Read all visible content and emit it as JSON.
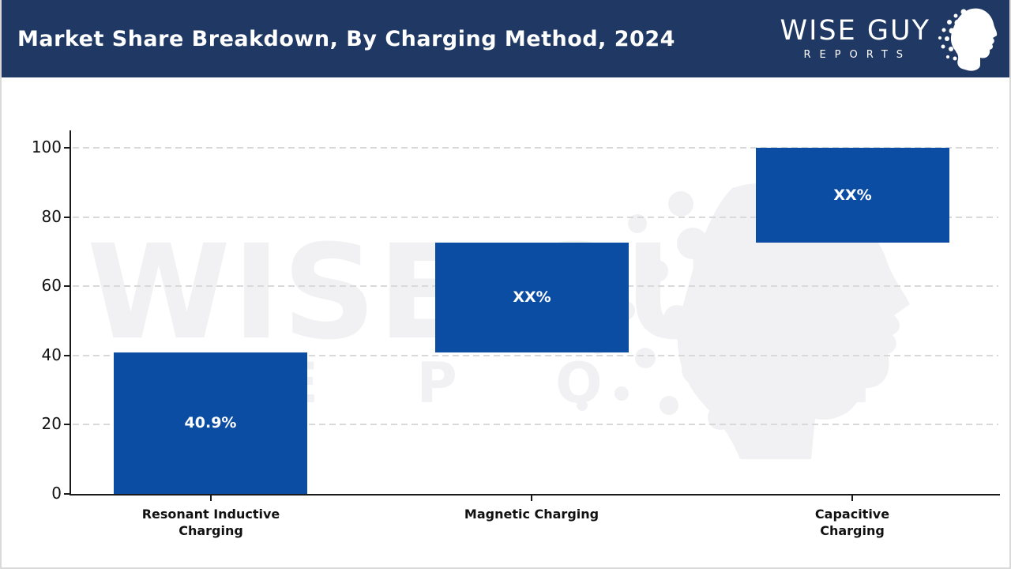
{
  "header": {
    "title": "Market Share Breakdown, By Charging Method, 2024",
    "logo": {
      "line1": "WISE GUY",
      "line2": "REPORTS"
    },
    "bg_color": "#1f3864"
  },
  "watermark": {
    "line1": "WISE GUY",
    "line2": "R E P O R T S"
  },
  "chart_data": {
    "type": "bar",
    "subtype": "waterfall",
    "title": "Market Share Breakdown, By Charging Method, 2024",
    "categories": [
      {
        "lines": [
          "Resonant Inductive",
          "Charging"
        ]
      },
      {
        "lines": [
          "Magnetic Charging"
        ]
      },
      {
        "lines": [
          "Capacitive",
          "Charging"
        ]
      }
    ],
    "segments": [
      {
        "category": "Resonant Inductive Charging",
        "start": 0,
        "end": 40.9,
        "label": "40.9%"
      },
      {
        "category": "Magnetic Charging",
        "start": 40.9,
        "end": 72.7,
        "label": "XX%"
      },
      {
        "category": "Capacitive Charging",
        "start": 72.7,
        "end": 100,
        "label": "XX%"
      }
    ],
    "yticks": [
      0,
      20,
      40,
      60,
      80,
      100
    ],
    "ylim": [
      0,
      105
    ],
    "grid": "dashed horizontal, light gray",
    "legend": "none",
    "bar_color": "#0b4da2",
    "bar_label_color": "#ffffff",
    "grid_color": "#d9d9d9",
    "axis_color": "#1a1a1a"
  }
}
